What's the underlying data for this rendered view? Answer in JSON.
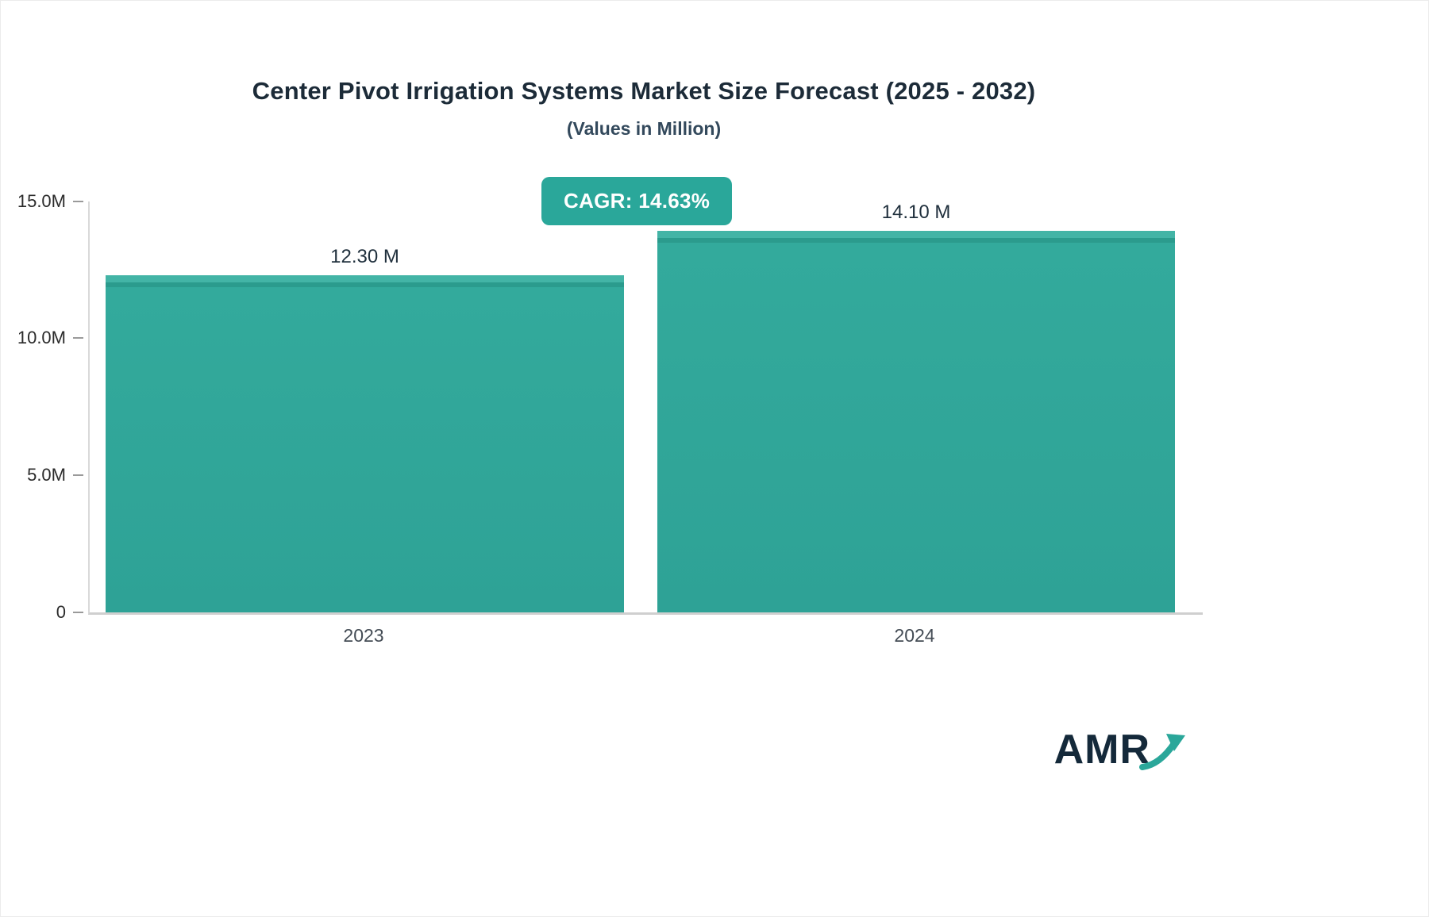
{
  "chart_data": {
    "type": "bar",
    "title": "Center Pivot Irrigation Systems Market Size Forecast (2025 - 2032)",
    "subtitle": "(Values in Million)",
    "cagr_badge": "CAGR: 14.63%",
    "categories": [
      "2023",
      "2024"
    ],
    "values": [
      12.3,
      14.1
    ],
    "value_labels": [
      "12.30 M",
      "14.10 M"
    ],
    "unit": "Million",
    "ylim": [
      0,
      15
    ],
    "yticks": [
      "15.0M",
      "10.0M",
      "5.0M",
      "0"
    ],
    "grid": false,
    "legend_position": "none",
    "bar_color": "#2fa99b",
    "badge_color": "#2aa79a"
  },
  "branding": {
    "logo_text": "AMR",
    "arrow_color": "#2aa79a"
  }
}
